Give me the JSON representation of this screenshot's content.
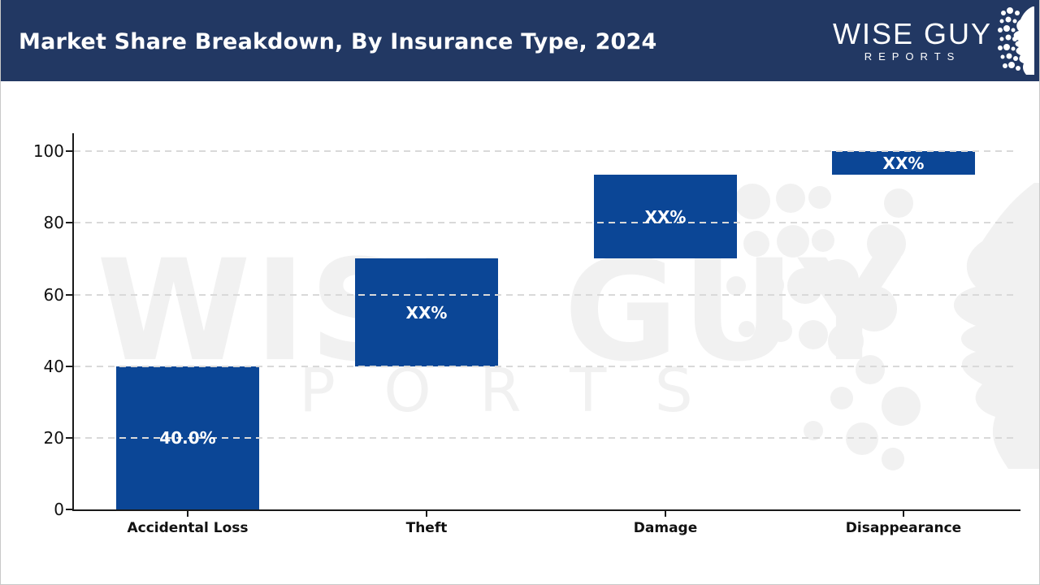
{
  "header": {
    "title": "Market Share Breakdown, By Insurance Type, 2024",
    "logo": {
      "line1": "WISE GUY",
      "line2": "REPORTS"
    }
  },
  "watermark": {
    "line1": "WISE GUY",
    "line2": "R E P O R T S"
  },
  "chart_data": {
    "type": "bar",
    "subtype": "waterfall",
    "title": "Market Share Breakdown, By Insurance Type, 2024",
    "categories": [
      "Accidental Loss",
      "Theft",
      "Damage",
      "Disappearance"
    ],
    "segments": [
      {
        "category": "Accidental Loss",
        "start": 0,
        "end": 40,
        "value": 40,
        "label": "40.0%"
      },
      {
        "category": "Theft",
        "start": 40,
        "end": 70,
        "value": 30,
        "label": "XX%"
      },
      {
        "category": "Damage",
        "start": 70,
        "end": 93.5,
        "value": 23.5,
        "label": "XX%"
      },
      {
        "category": "Disappearance",
        "start": 93.5,
        "end": 100,
        "value": 6.5,
        "label": "XX%"
      }
    ],
    "y_ticks": [
      0,
      20,
      40,
      60,
      80,
      100
    ],
    "ylim": [
      0,
      105
    ],
    "xlabel": "",
    "ylabel": "",
    "grid": "horizontal-dashed",
    "legend": "none"
  },
  "colors": {
    "header_bg": "#223863",
    "bar": "#0b4696",
    "grid": "#d9d9d9",
    "axis": "#1a1a1a",
    "watermark": "#f1f1f1",
    "border": "#c9c9c9"
  }
}
